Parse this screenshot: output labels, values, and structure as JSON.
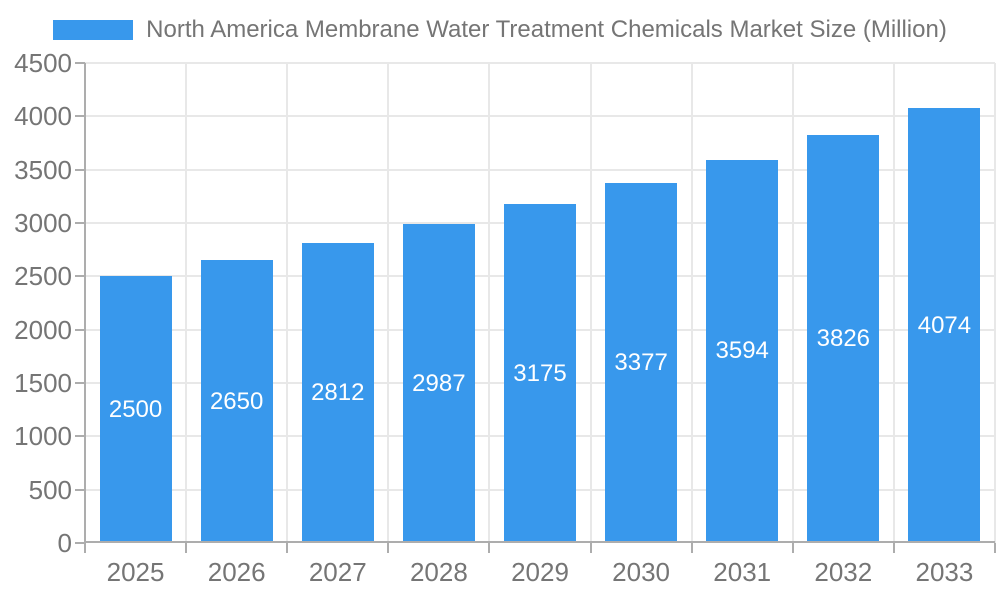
{
  "chart_data": {
    "type": "bar",
    "title": "North America Membrane Water Treatment Chemicals Market Size (Million)",
    "categories": [
      "2025",
      "2026",
      "2027",
      "2028",
      "2029",
      "2030",
      "2031",
      "2032",
      "2033"
    ],
    "values": [
      2500,
      2650,
      2812,
      2987,
      3175,
      3377,
      3594,
      3826,
      4074
    ],
    "xlabel": "",
    "ylabel": "",
    "ylim": [
      0,
      4500
    ],
    "yticks": [
      0,
      500,
      1000,
      1500,
      2000,
      2500,
      3000,
      3500,
      4000,
      4500
    ],
    "grid": true,
    "legend_position": "top",
    "value_label_position": "center-of-bar"
  },
  "colors": {
    "bar": "#3898ec",
    "label_text": "#757575",
    "value_label_text": "#ffffff",
    "axis_line": "#adadad",
    "gridline": "#e8e8e8",
    "background": "#ffffff"
  }
}
